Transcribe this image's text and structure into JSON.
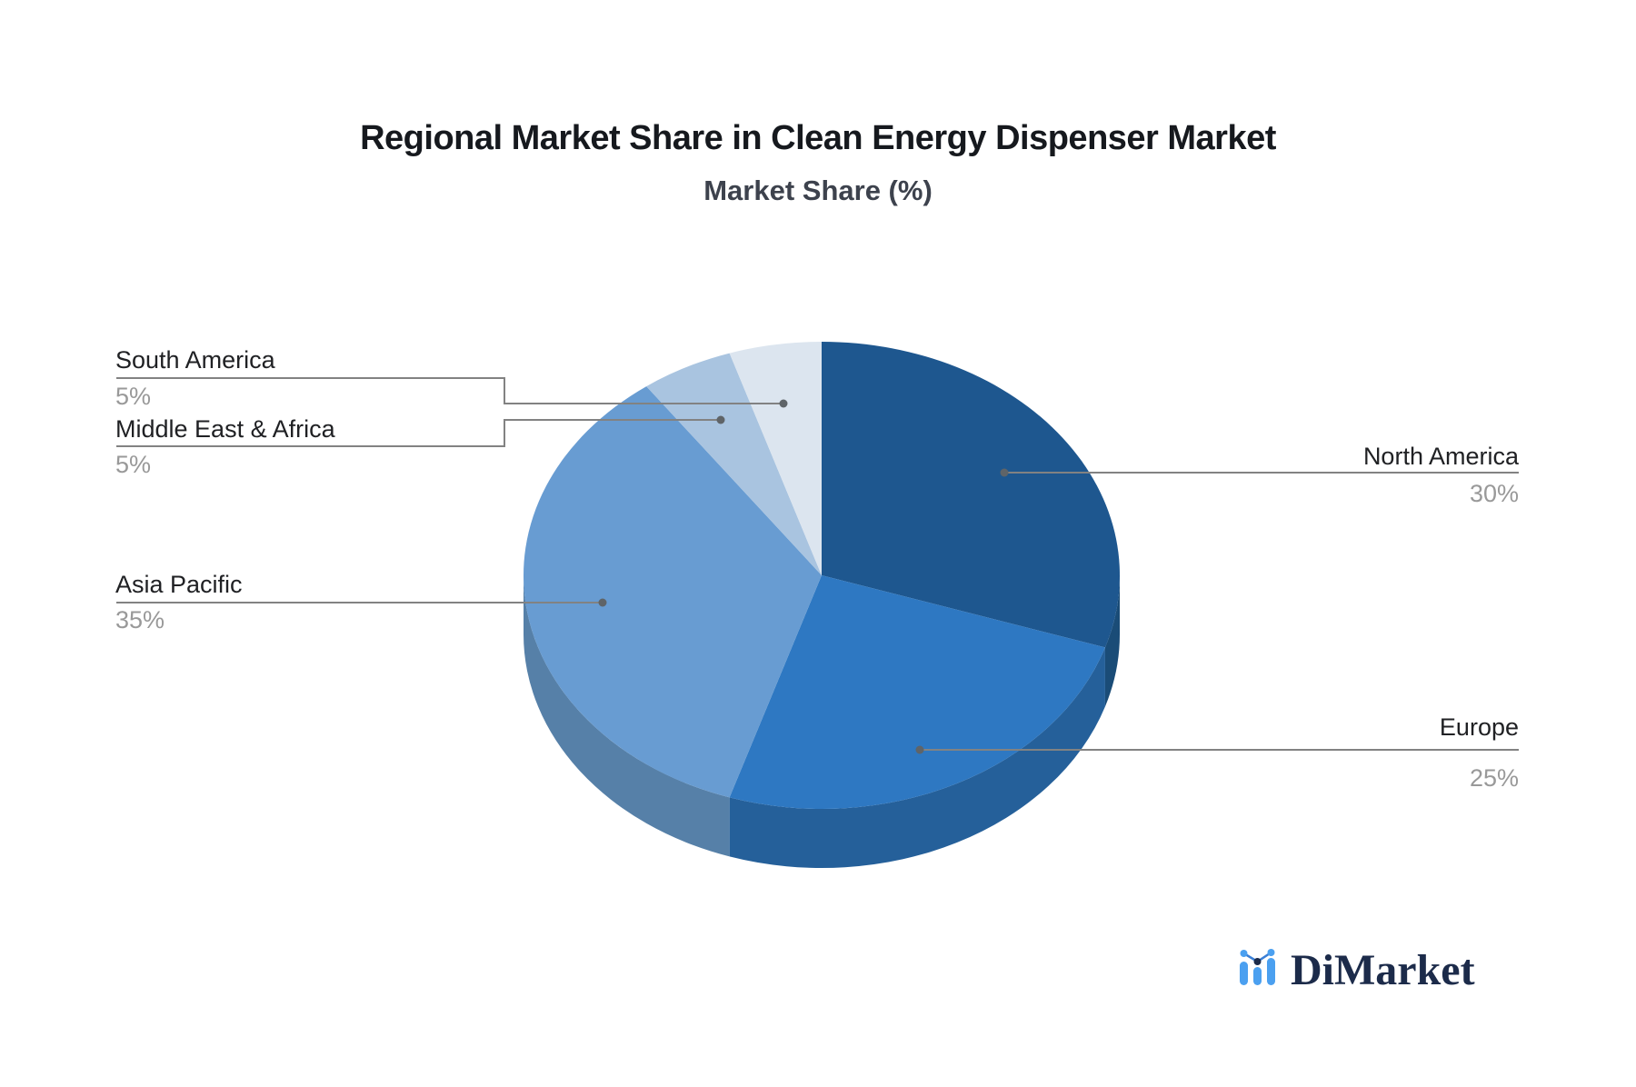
{
  "chart": {
    "title": "Regional Market Share in Clean Energy Dispenser Market",
    "subtitle": "Market Share (%)"
  },
  "chart_data": {
    "type": "pie",
    "title": "Regional Market Share in Clean Energy Dispenser Market",
    "subtitle": "Market Share (%)",
    "unit": "%",
    "start_angle_deg": 0,
    "direction": "clockwise",
    "legend_position": "none",
    "style_3d": true,
    "slices": [
      {
        "label": "North America",
        "value": 30,
        "display": "30%",
        "color": "#1E578F",
        "side_color": "#1A4C77"
      },
      {
        "label": "Europe",
        "value": 25,
        "display": "25%",
        "color": "#2E78C2",
        "side_color": "#25609A"
      },
      {
        "label": "Asia Pacific",
        "value": 35,
        "display": "35%",
        "color": "#689CD2",
        "side_color": "#5680A8"
      },
      {
        "label": "Middle East & Africa",
        "value": 5,
        "display": "5%",
        "color": "#A9C4E0",
        "side_color": "#8FA9C4"
      },
      {
        "label": "South America",
        "value": 5,
        "display": "5%",
        "color": "#DCE5EF",
        "side_color": "#BCC7D4"
      }
    ]
  },
  "colors": {
    "connector_line": "#828282",
    "connector_dot": "#5F6468",
    "label_text": "#202124",
    "pct_text": "#999999",
    "title_text": "#16191E",
    "subtitle_text": "#3D424D"
  },
  "logo": {
    "text": "DiMarket",
    "bar_color": "#4BA0F0",
    "line_color": "#3A7FD6",
    "navy_color": "#1C2B4A"
  }
}
